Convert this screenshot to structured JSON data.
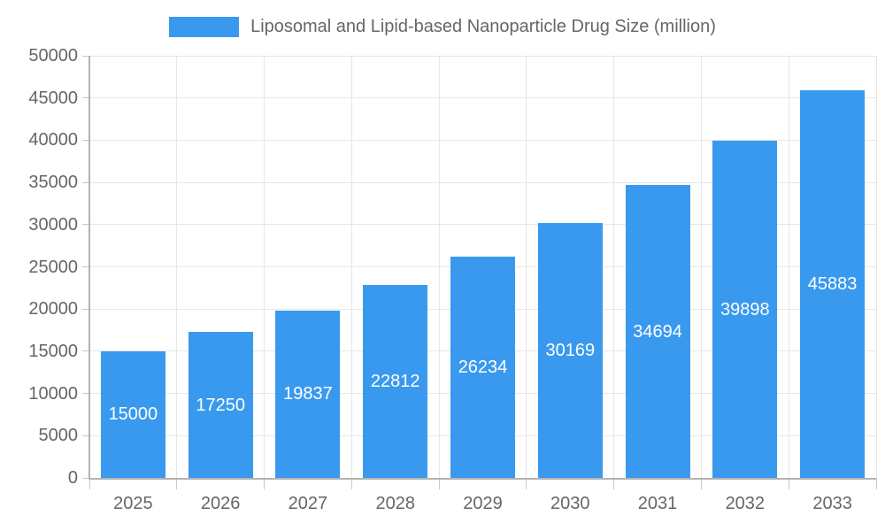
{
  "legend": {
    "label": "Liposomal and Lipid-based Nanoparticle Drug Size (million)"
  },
  "colors": {
    "bar": "#3999ee",
    "grid": "#e6e6e6",
    "axis": "#b3b3b3",
    "tick": "#c9c9c9",
    "text": "#666666",
    "value_label": "#ffffff",
    "background": "#ffffff"
  },
  "chart_data": {
    "type": "bar",
    "title": "Liposomal and Lipid-based Nanoparticle Drug Size (million)",
    "categories": [
      "2025",
      "2026",
      "2027",
      "2028",
      "2029",
      "2030",
      "2031",
      "2032",
      "2033"
    ],
    "values": [
      15000,
      17250,
      19837,
      22812,
      26234,
      30169,
      34694,
      39898,
      45883
    ],
    "xlabel": "",
    "ylabel": "",
    "ylim": [
      0,
      50000
    ],
    "ystep": 5000,
    "ytick_labels": [
      "0",
      "5000",
      "10000",
      "15000",
      "20000",
      "25000",
      "30000",
      "35000",
      "40000",
      "45000",
      "50000"
    ],
    "grid": true,
    "legend_position": "top",
    "value_labels": "inside-center"
  }
}
